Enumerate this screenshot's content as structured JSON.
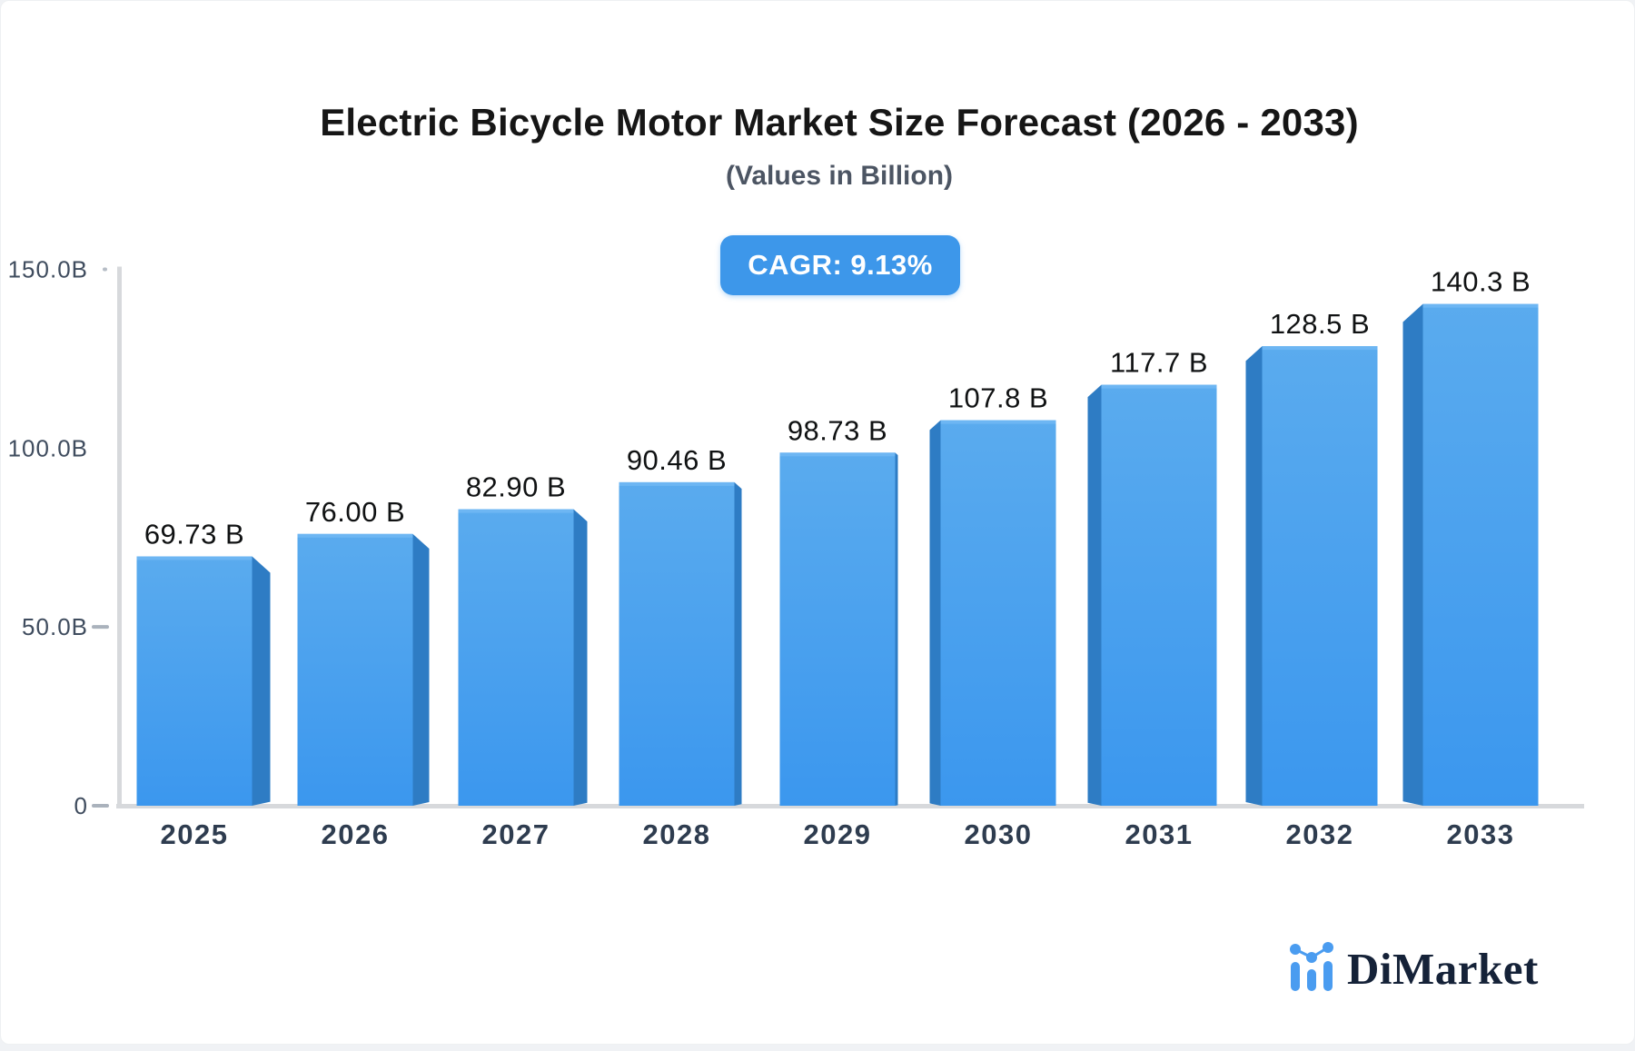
{
  "header": {
    "title": "Electric Bicycle Motor Market Size Forecast (2026 - 2033)",
    "subtitle": "(Values in Billion)",
    "cagr_label": "CAGR: 9.13%"
  },
  "chart_data": {
    "type": "bar",
    "title": "Electric Bicycle Motor Market Size Forecast (2026 - 2033)",
    "subtitle": "(Values in Billion)",
    "categories": [
      "2025",
      "2026",
      "2027",
      "2028",
      "2029",
      "2030",
      "2031",
      "2032",
      "2033"
    ],
    "values": [
      69.73,
      76.0,
      82.9,
      90.46,
      98.73,
      107.8,
      117.7,
      128.5,
      140.3
    ],
    "value_labels": [
      "69.73 B",
      "76.00 B",
      "82.90 B",
      "90.46 B",
      "98.73 B",
      "107.8 B",
      "117.7 B",
      "128.5 B",
      "140.3 B"
    ],
    "cagr": "9.13%",
    "xlabel": "",
    "ylabel": "",
    "ylim": [
      0,
      150
    ],
    "yticks": [
      {
        "label": "150.0B",
        "value": 150,
        "tick": "dot"
      },
      {
        "label": "100.0B",
        "value": 100,
        "tick": "none"
      },
      {
        "label": "50.0B",
        "value": 50,
        "tick": "dash"
      },
      {
        "label": "0",
        "value": 0,
        "tick": "dash"
      }
    ],
    "grid": false,
    "legend": false,
    "style_3d": true,
    "colors": {
      "bar_face_top": "#5aabee",
      "bar_face_bottom": "#3b97ee",
      "bar_top_highlight": "#6db6f3",
      "bar_side": "#2e7cc4",
      "axis_line": "#d7d9dc",
      "accent": "#3d97ea"
    }
  },
  "footer": {
    "brand": "DiMarket"
  }
}
